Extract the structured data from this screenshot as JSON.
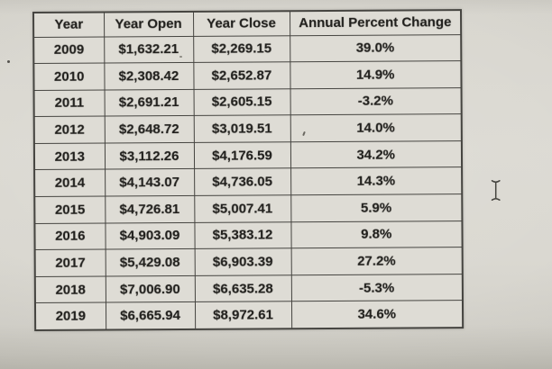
{
  "colors": {
    "page-bg": "#d8d6cf",
    "cell-bg": "#dedcd5",
    "border": "#454440",
    "text": "#21201d",
    "cursor": "#45443f"
  },
  "cursor": {
    "type": "ibeam-text-cursor"
  },
  "table": {
    "headers": [
      "Year",
      "Year Open",
      "Year Close",
      "Annual Percent Change"
    ],
    "rows": [
      {
        "year": "2009",
        "open": "$1,632.21",
        "close": "$2,269.15",
        "change": "39.0%"
      },
      {
        "year": "2010",
        "open": "$2,308.42",
        "close": "$2,652.87",
        "change": "14.9%"
      },
      {
        "year": "2011",
        "open": "$2,691.21",
        "close": "$2,605.15",
        "change": "-3.2%"
      },
      {
        "year": "2012",
        "open": "$2,648.72",
        "close": "$3,019.51",
        "change": "14.0%"
      },
      {
        "year": "2013",
        "open": "$3,112.26",
        "close": "$4,176.59",
        "change": "34.2%"
      },
      {
        "year": "2014",
        "open": "$4,143.07",
        "close": "$4,736.05",
        "change": "14.3%"
      },
      {
        "year": "2015",
        "open": "$4,726.81",
        "close": "$5,007.41",
        "change": "5.9%"
      },
      {
        "year": "2016",
        "open": "$4,903.09",
        "close": "$5,383.12",
        "change": "9.8%"
      },
      {
        "year": "2017",
        "open": "$5,429.08",
        "close": "$6,903.39",
        "change": "27.2%"
      },
      {
        "year": "2018",
        "open": "$7,006.90",
        "close": "$6,635.28",
        "change": "-5.3%"
      },
      {
        "year": "2019",
        "open": "$6,665.94",
        "close": "$8,972.61",
        "change": "34.6%"
      }
    ]
  }
}
